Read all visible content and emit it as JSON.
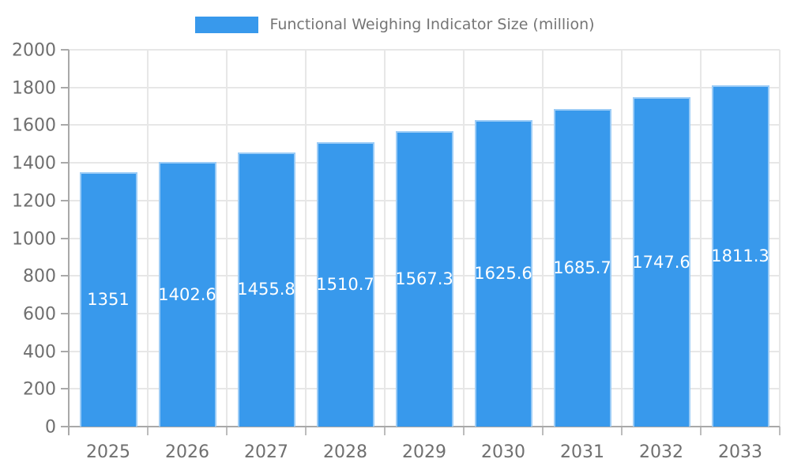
{
  "chart_data": {
    "type": "bar",
    "title": "Functional Weighing Indicator Size (million)",
    "categories": [
      "2025",
      "2026",
      "2027",
      "2028",
      "2029",
      "2030",
      "2031",
      "2032",
      "2033"
    ],
    "values": [
      1351,
      1402.6,
      1455.8,
      1510.7,
      1567.3,
      1625.6,
      1685.7,
      1747.6,
      1811.3
    ],
    "value_labels": [
      "1351",
      "1402.6",
      "1455.8",
      "1510.7",
      "1567.3",
      "1625.6",
      "1685.7",
      "1747.6",
      "1811.3"
    ],
    "xlabel": "",
    "ylabel": "",
    "ylim": [
      0,
      2000
    ],
    "ytick_step": 200,
    "ytick_labels": [
      "0",
      "200",
      "400",
      "600",
      "800",
      "1000",
      "1200",
      "1400",
      "1600",
      "1800",
      "2000"
    ],
    "grid": true,
    "legend_position": "top",
    "colors": {
      "bar_fill": "#3899EC",
      "bar_value_text": "#ffffff",
      "axis_line": "#a9a9a9",
      "grid_line": "#e7e7e7",
      "axis_text": "#6f6f6f",
      "legend_text": "#757575"
    }
  }
}
